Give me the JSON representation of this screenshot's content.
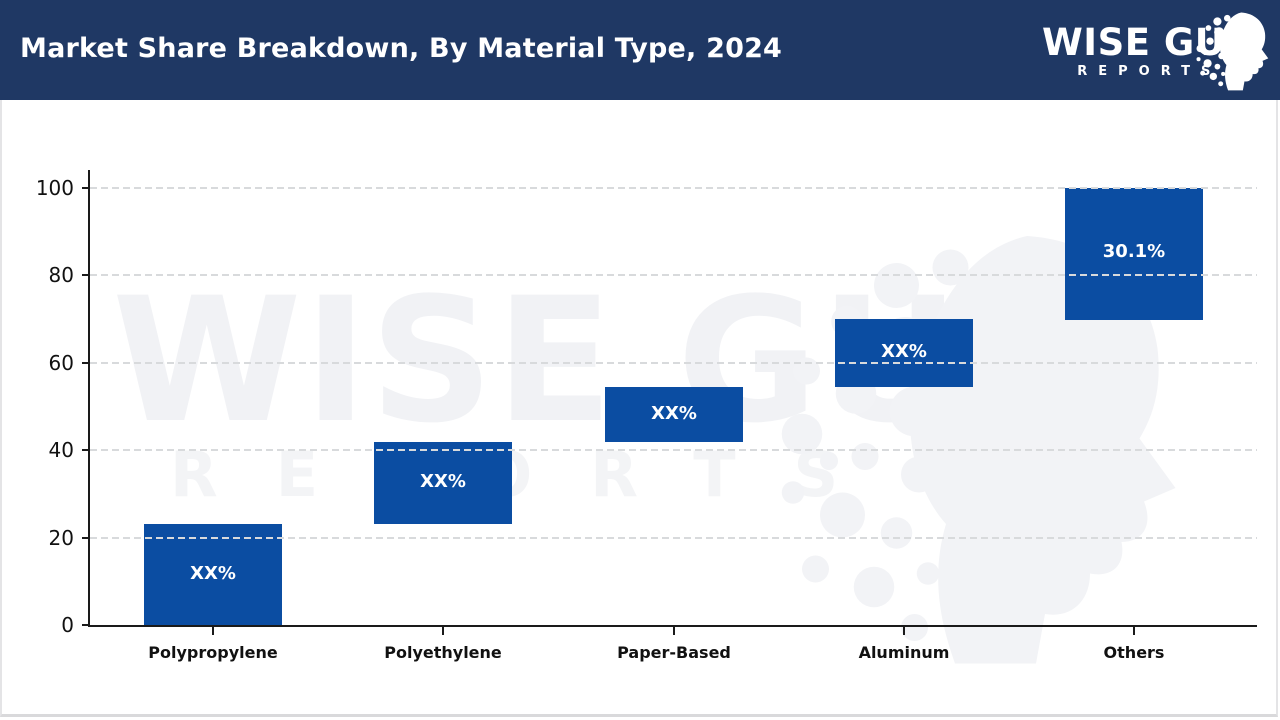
{
  "header": {
    "title": "Market Share Breakdown, By Material Type, 2024",
    "logo": {
      "brand": "WISE GUY",
      "sub": "REPORTS"
    }
  },
  "watermark": {
    "brand": "WISE GUY",
    "sub": "REPORTS"
  },
  "chart_data": {
    "type": "bar",
    "subtype": "waterfall",
    "title": "Market Share Breakdown, By Material Type, 2024",
    "categories": [
      "Polypropylene",
      "Polyethylene",
      "Paper-Based",
      "Aluminum",
      "Others"
    ],
    "segments": [
      {
        "category": "Polypropylene",
        "start": 0,
        "end": 23,
        "label": "XX%"
      },
      {
        "category": "Polyethylene",
        "start": 23,
        "end": 41.8,
        "label": "XX%"
      },
      {
        "category": "Paper-Based",
        "start": 41.8,
        "end": 54.3,
        "label": "XX%"
      },
      {
        "category": "Aluminum",
        "start": 54.3,
        "end": 69.9,
        "label": "XX%"
      },
      {
        "category": "Others",
        "start": 69.9,
        "end": 100,
        "label": "30.1%"
      }
    ],
    "yticks": [
      0,
      20,
      40,
      60,
      80,
      100
    ],
    "ylim": [
      0,
      104
    ],
    "xlabel": "",
    "ylabel": "",
    "grid": "horizontal-dashed",
    "legend": "none",
    "bar_color": "#0b4da2",
    "bar_label_color": "#ffffff"
  },
  "colors": {
    "header_bg": "#1f3864",
    "bar": "#0b4da2",
    "axis": "#1a1a1a",
    "grid": "#d8dadc",
    "watermark": "#f1f2f5",
    "text": "#111111"
  }
}
